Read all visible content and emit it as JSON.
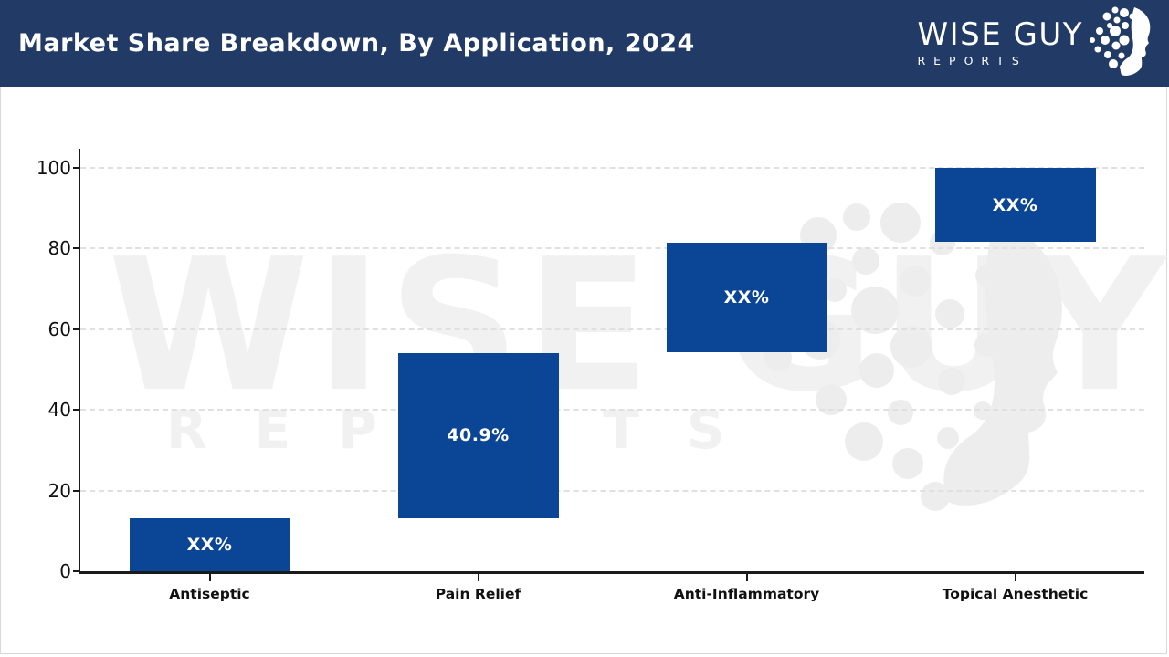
{
  "header": {
    "title": "Market Share Breakdown, By Application, 2024",
    "bg_color": "#213a66",
    "logo": {
      "line1": "WISE GUY",
      "line2": "REPORTS"
    }
  },
  "watermark": {
    "line1": "WISE GUY",
    "line2": "REPORTS"
  },
  "chart_data": {
    "type": "bar",
    "variant": "floating-waterfall-columns",
    "title": "Market Share Breakdown, By Application, 2024",
    "categories": [
      "Antiseptic",
      "Pain Relief",
      "Anti-Inflammatory",
      "Topical Anesthetic"
    ],
    "segments": [
      {
        "category": "Antiseptic",
        "start": 0,
        "end": 13.1,
        "value": 13.1,
        "label": "XX%"
      },
      {
        "category": "Pain Relief",
        "start": 13.2,
        "end": 54.1,
        "value": 40.9,
        "label": "40.9%"
      },
      {
        "category": "Anti-Inflammatory",
        "start": 54.2,
        "end": 81.5,
        "value": 27.3,
        "label": "XX%"
      },
      {
        "category": "Topical Anesthetic",
        "start": 81.6,
        "end": 99.9,
        "value": 18.3,
        "label": "XX%"
      }
    ],
    "y_ticks": [
      0,
      20,
      40,
      60,
      80,
      100
    ],
    "ylim": [
      0,
      105
    ],
    "xlabel": "",
    "ylabel": "",
    "grid": "horizontal-dashed",
    "legend": "none",
    "bar_color": "#0a4596",
    "bar_label_color": "#ffffff",
    "axis_color": "#1a1a1a",
    "gridline_color": "#e0e0e0"
  }
}
